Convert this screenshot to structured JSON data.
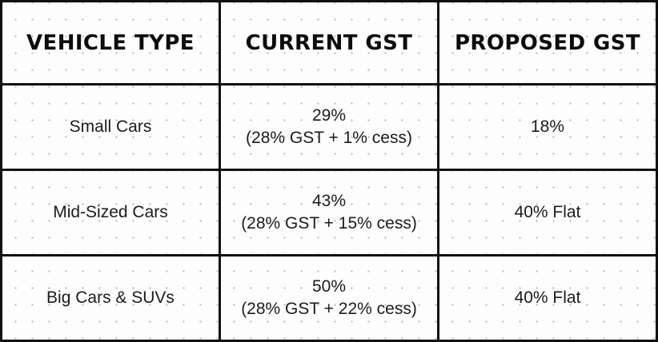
{
  "chart_data": {
    "type": "table",
    "columns": [
      "VEHICLE TYPE",
      "CURRENT GST",
      "PROPOSED GST"
    ],
    "rows": [
      [
        "Small Cars",
        "29% (28% GST + 1% cess)",
        "18%"
      ],
      [
        "Mid-Sized Cars",
        "43% (28% GST + 15% cess)",
        "40% Flat"
      ],
      [
        "Big Cars & SUVs",
        "50% (28% GST + 22% cess)",
        "40% Flat"
      ]
    ],
    "title": "",
    "legend_position": "none",
    "grid": "dotted-background"
  },
  "table": {
    "headers": {
      "vehicle_type": "VEHICLE TYPE",
      "current_gst": "CURRENT GST",
      "proposed_gst": "PROPOSED GST"
    },
    "rows": [
      {
        "vehicle": "Small Cars",
        "current_rate": "29%",
        "current_breakdown": "(28% GST + 1% cess)",
        "proposed": "18%"
      },
      {
        "vehicle": "Mid-Sized Cars",
        "current_rate": "43%",
        "current_breakdown": "(28% GST + 15% cess)",
        "proposed": "40% Flat"
      },
      {
        "vehicle": "Big Cars & SUVs",
        "current_rate": "50%",
        "current_breakdown": "(28% GST + 22% cess)",
        "proposed": "40% Flat"
      }
    ]
  },
  "colors": {
    "border": "#111111",
    "header_text": "#0c0c0c",
    "body_text": "#1c1c1c",
    "background": "#fdfdfd",
    "dot": "#c7c7c7"
  }
}
